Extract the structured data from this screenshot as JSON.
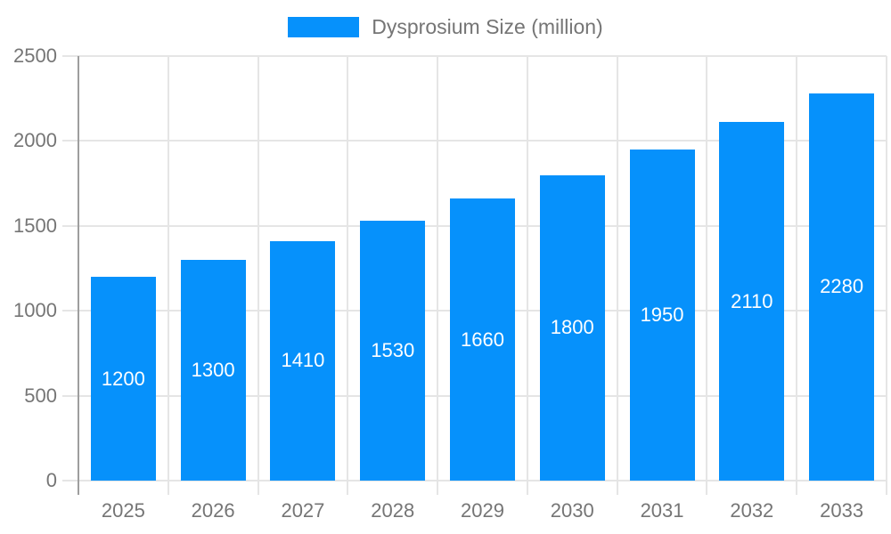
{
  "legend": {
    "label": "Dysprosium Size (million)",
    "swatch_color": "#0691fb"
  },
  "chart_data": {
    "type": "bar",
    "title": "Dysprosium Size (million)",
    "categories": [
      "2025",
      "2026",
      "2027",
      "2028",
      "2029",
      "2030",
      "2031",
      "2032",
      "2033"
    ],
    "values": [
      1200,
      1300,
      1410,
      1530,
      1660,
      1800,
      1950,
      2110,
      2280
    ],
    "series": [
      {
        "name": "Dysprosium Size (million)",
        "values": [
          1200,
          1300,
          1410,
          1530,
          1660,
          1800,
          1950,
          2110,
          2280
        ]
      }
    ],
    "value_labels": [
      "1200",
      "1300",
      "1410",
      "1530",
      "1660",
      "1800",
      "1950",
      "2110",
      "2280"
    ],
    "xlabel": "",
    "ylabel": "",
    "ylim": [
      0,
      2500
    ],
    "yticks": [
      0,
      500,
      1000,
      1500,
      2000,
      2500
    ],
    "ytick_labels": [
      "0",
      "500",
      "1000",
      "1500",
      "2000",
      "2500"
    ],
    "grid": true,
    "legend_position": "top",
    "colors": {
      "bar": "#0691fb",
      "value_label": "#ffffff",
      "axis_text": "#757575",
      "gridline": "#e5e5e5",
      "axis_line": "#9e9e9e",
      "background": "#ffffff"
    }
  }
}
